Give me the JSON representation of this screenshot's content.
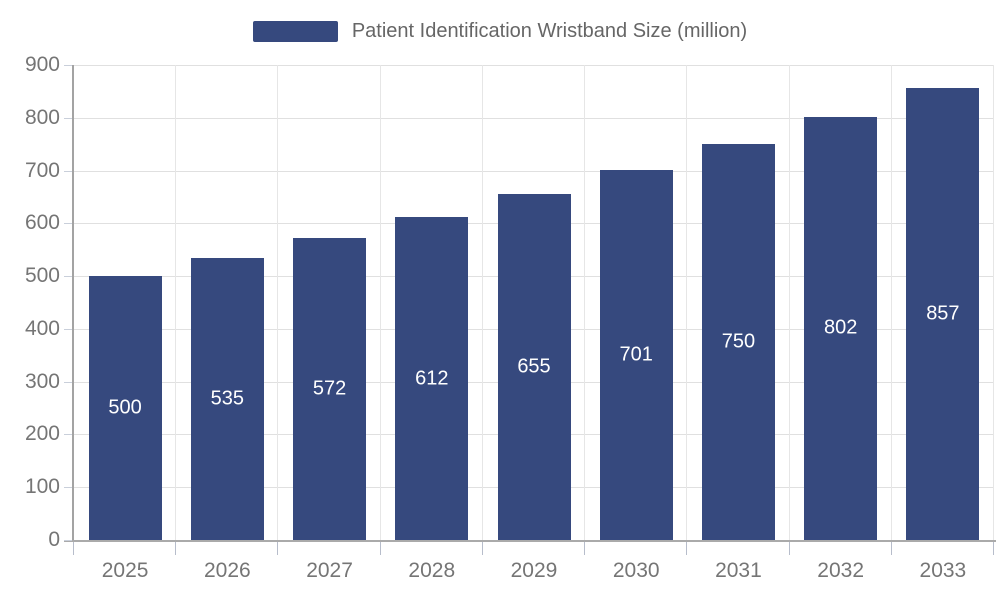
{
  "legend": {
    "label": "Patient Identification Wristband Size (million)"
  },
  "chart_data": {
    "type": "bar",
    "title": "Patient Identification Wristband Size (million)",
    "categories": [
      "2025",
      "2026",
      "2027",
      "2028",
      "2029",
      "2030",
      "2031",
      "2032",
      "2033"
    ],
    "values": [
      500,
      535,
      572,
      612,
      655,
      701,
      750,
      802,
      857
    ],
    "xlabel": "",
    "ylabel": "",
    "ylim": [
      0,
      900
    ],
    "ytick_step": 100,
    "grid": true,
    "legend_position": "top-center",
    "value_labels": "inside-center-white",
    "colors": {
      "bar": "#36497E",
      "value_label": "#ffffff",
      "axis_text": "#757575",
      "legend_text": "#666666",
      "grid_line": "#e0e0e0",
      "axis_line": "#a3a3a3"
    }
  }
}
